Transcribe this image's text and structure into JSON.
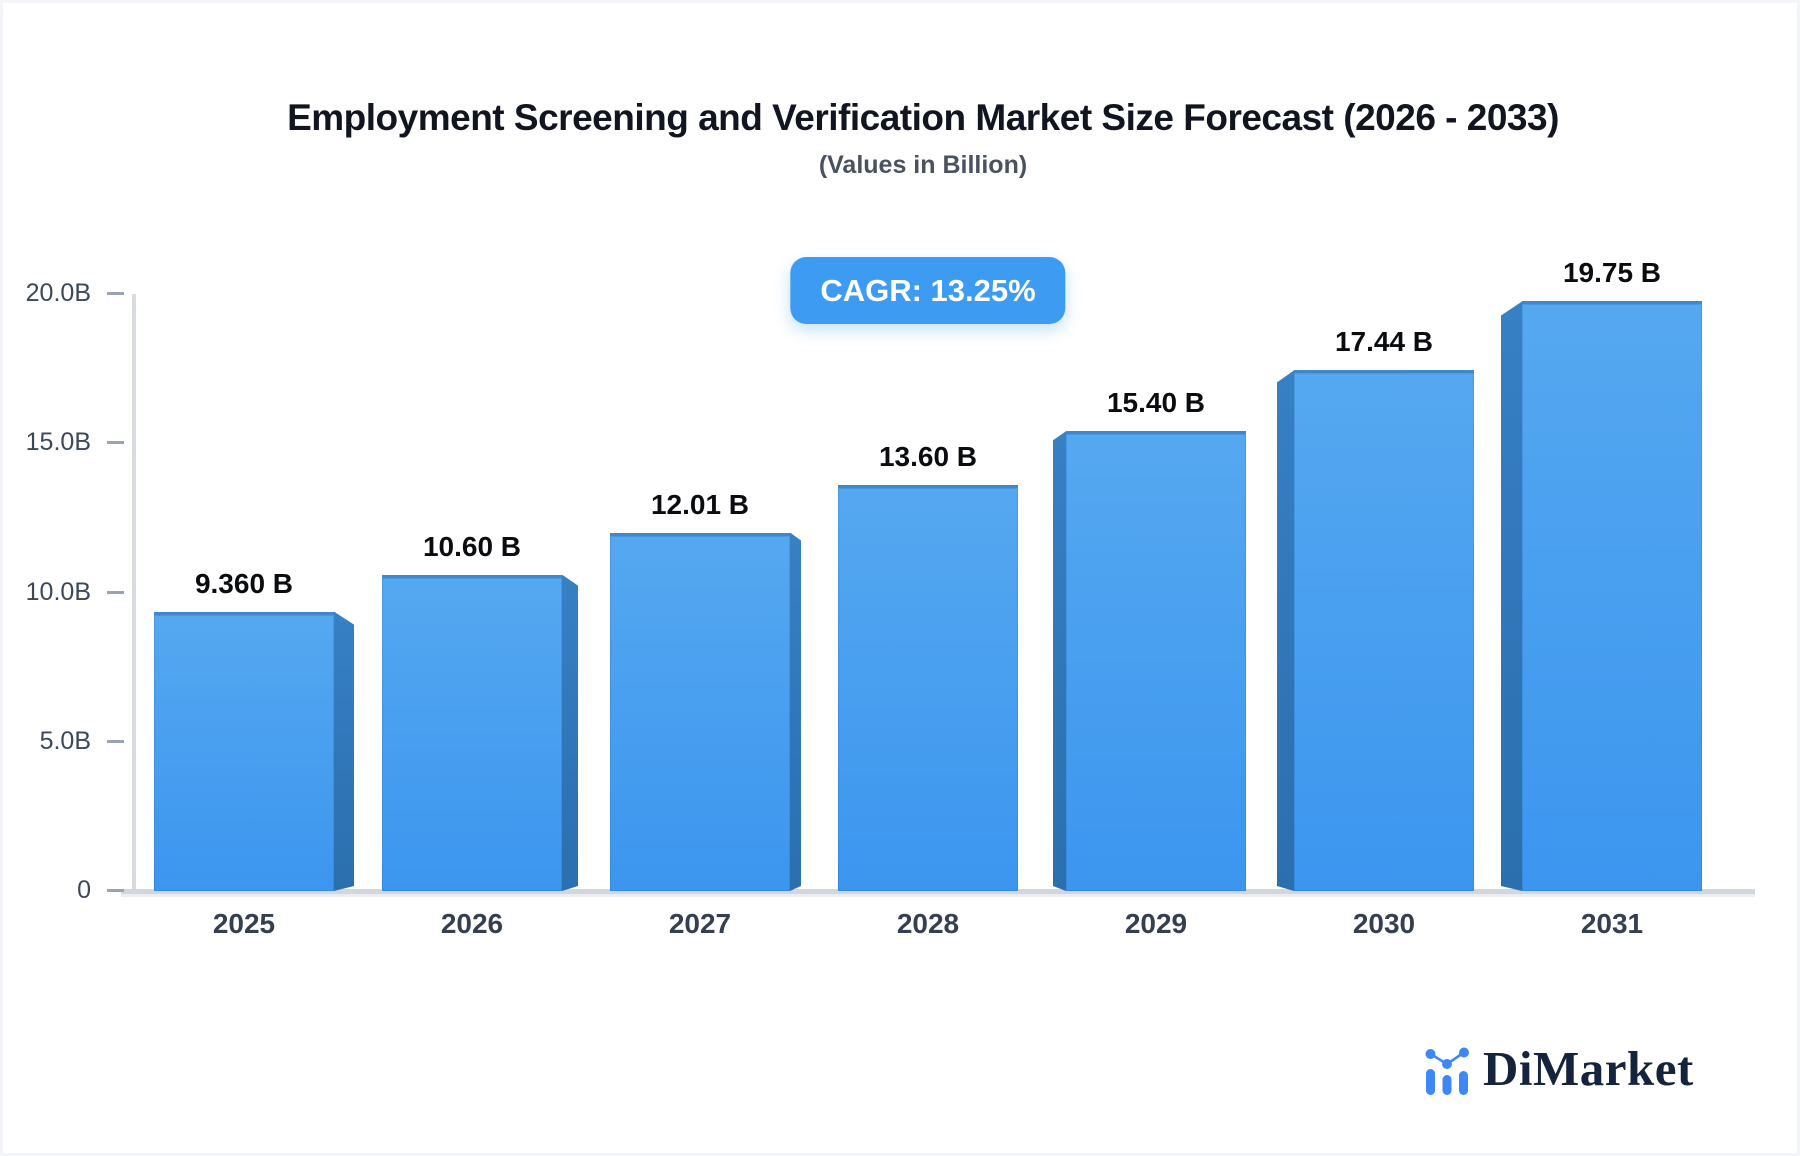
{
  "header": {
    "title": "Employment Screening and Verification Market Size Forecast (2026 - 2033)",
    "subtitle": "(Values in Billion)"
  },
  "badge": {
    "label": "CAGR: 13.25%"
  },
  "logo": {
    "brand": "DiMarket"
  },
  "chart_data": {
    "type": "bar",
    "title": "Employment Screening and Verification Market Size Forecast (2026 - 2033)",
    "subtitle": "(Values in Billion)",
    "cagr_label": "CAGR: 13.25%",
    "categories": [
      "2025",
      "2026",
      "2027",
      "2028",
      "2029",
      "2030",
      "2031"
    ],
    "values": [
      9.36,
      10.6,
      12.01,
      13.6,
      15.4,
      17.44,
      19.75
    ],
    "value_labels": [
      "9.360 B",
      "10.60 B",
      "12.01 B",
      "13.60 B",
      "15.40 B",
      "17.44 B",
      "19.75 B"
    ],
    "xlabel": "",
    "ylabel": "",
    "ylim": [
      0,
      20
    ],
    "yticks": [
      {
        "value": 0,
        "label": "0"
      },
      {
        "value": 5,
        "label": "5.0B"
      },
      {
        "value": 10,
        "label": "10.0B"
      },
      {
        "value": 15,
        "label": "15.0B"
      },
      {
        "value": 20,
        "label": "20.0B"
      }
    ],
    "grid": false,
    "legend": false,
    "bar_style": "3d-extruded-toward-center-vanishing-point",
    "colors": {
      "bar_face_top": "#55a8f0",
      "bar_face_bottom": "#3c96ef",
      "bar_edge": "#3f87ce",
      "bar_side_top": "#3680c4",
      "bar_side_bottom": "#2b6fae",
      "badge_bg": "#3d9bf2",
      "axis_line": "#d8dbe2",
      "baseline": "#d2d6de",
      "tick": "#9aa3b1",
      "y_label": "#3d4857",
      "x_label": "#343f51",
      "value_label": "#0a0c10",
      "logo_blue": "#3d87f6",
      "logo_navy": "#15243d"
    }
  }
}
